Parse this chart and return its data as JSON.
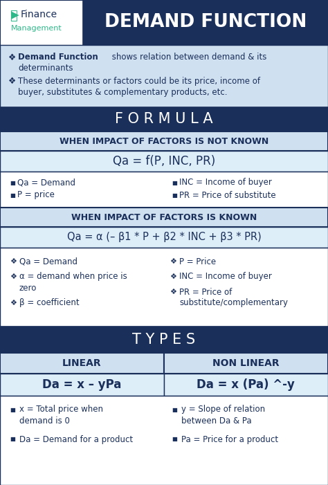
{
  "title": "DEMAND FUNCTION",
  "dark_navy": "#1a2f5a",
  "light_blue": "#cfe0f0",
  "formula_bg": "#ddeef8",
  "white": "#ffffff",
  "green": "#2eb88a",
  "border_color": "#1a2f5a",
  "formula_section": "F O R M U L A",
  "not_known_header": "WHEN IMPACT OF FACTORS IS NOT KNOWN",
  "not_known_formula": "Qa = f(P, INC, PR)",
  "known_header": "WHEN IMPACT OF FACTORS IS KNOWN",
  "known_formula": "Qa = α (– β1 * P + β2 * INC + β3 * PR)",
  "types_section": "T Y P E S",
  "linear_header": "LINEAR",
  "linear_formula": "Da = x – yPa",
  "nonlinear_header": "NON LINEAR",
  "nonlinear_formula": "Da = x (Pa) ^-y"
}
